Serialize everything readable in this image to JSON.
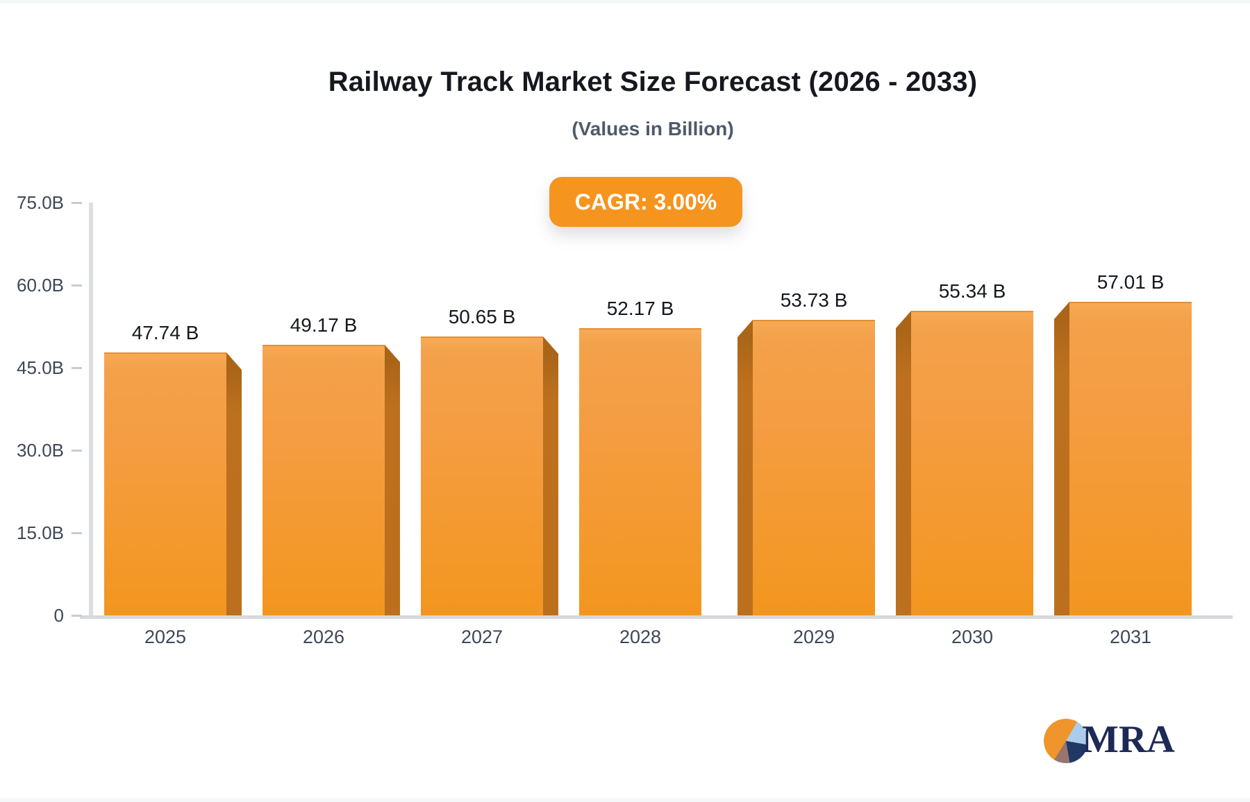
{
  "chart_data": {
    "type": "bar",
    "title": "Railway Track Market Size Forecast (2026 - 2033)",
    "subtitle": "(Values in Billion)",
    "badge_label": "CAGR: 3.00%",
    "categories": [
      "2025",
      "2026",
      "2027",
      "2028",
      "2029",
      "2030",
      "2031"
    ],
    "values": [
      47.74,
      49.17,
      50.65,
      52.17,
      53.73,
      55.34,
      57.01
    ],
    "value_labels": [
      "47.74 B",
      "49.17 B",
      "50.65 B",
      "52.17 B",
      "53.73 B",
      "55.34 B",
      "57.01 B"
    ],
    "y_ticks": [
      {
        "label": "75.0B",
        "value": 75
      },
      {
        "label": "60.0B",
        "value": 60
      },
      {
        "label": "45.0B",
        "value": 45
      },
      {
        "label": "30.0B",
        "value": 30
      },
      {
        "label": "15.0B",
        "value": 15
      },
      {
        "label": "0",
        "value": 0
      }
    ],
    "ylim": [
      0,
      75
    ],
    "xlabel": "",
    "ylabel": "",
    "grid": "none",
    "legend": "none",
    "bar_style": "3d-perspective-center-vanishing",
    "colors": {
      "bar_face_top": "#f6a953",
      "bar_face_bottom": "#f3961f",
      "bar_side": "#bc701d",
      "badge_bg": "#f5941f",
      "badge_text": "#ffffff",
      "axis_line": "#dcdee2",
      "tick_text": "#3e4756",
      "value_text": "#15181e",
      "title_text": "#15181e",
      "subtitle_text": "#4e5a6a"
    }
  },
  "logo": {
    "text": "MRA",
    "pie_colors": {
      "orange": "#f0952b",
      "light_blue": "#a9cdea",
      "navy": "#1f3865",
      "mauve": "#97756e"
    }
  }
}
